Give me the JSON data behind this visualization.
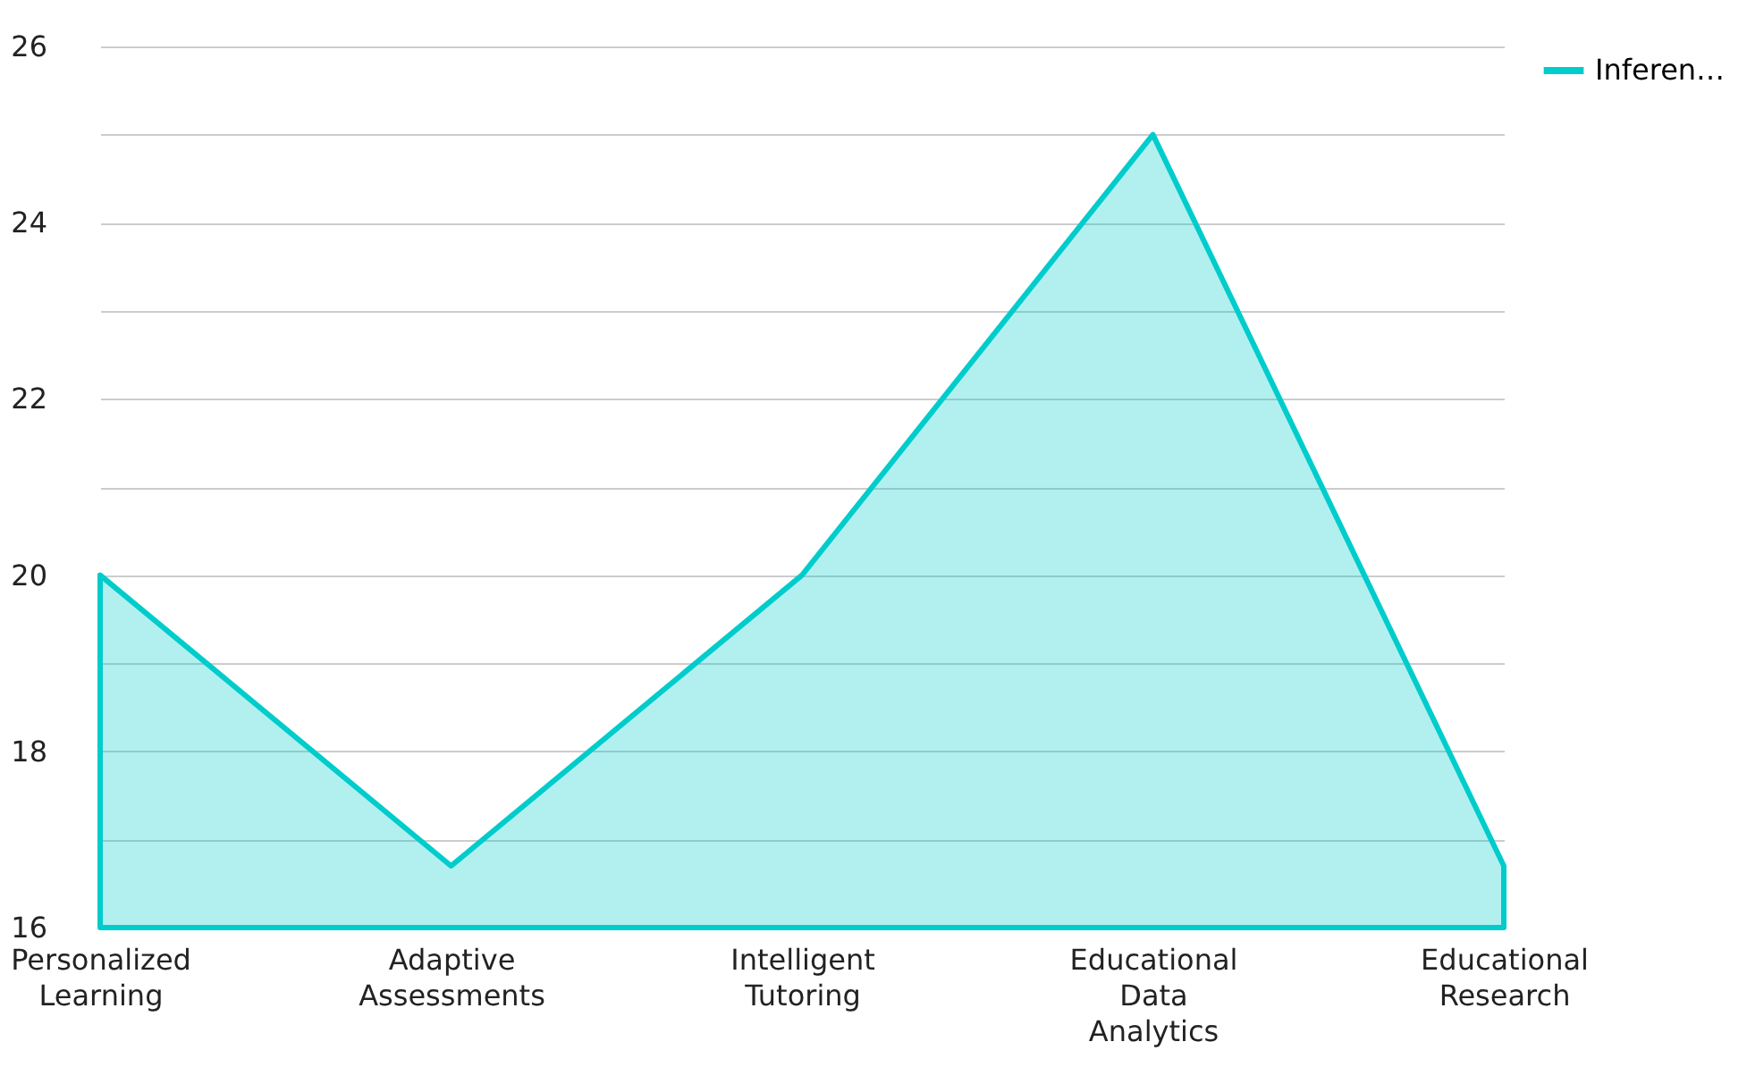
{
  "chart_data": {
    "type": "area",
    "categories": [
      "Personalized Learning",
      "Adaptive Assessments",
      "Intelligent Tutoring",
      "Educational Data Analytics",
      "Educational Research"
    ],
    "series": [
      {
        "name": "Inferen…",
        "color": "#00cccc",
        "values": [
          20,
          16.7,
          20,
          25,
          16.7
        ]
      }
    ],
    "ylim": [
      16,
      26
    ],
    "yticks": [
      16,
      {
        "value": 17,
        "label": null
      },
      18,
      {
        "value": 19,
        "label": null
      },
      20,
      {
        "value": 21,
        "label": null
      },
      22,
      {
        "value": 23,
        "label": null
      },
      24,
      {
        "value": 25,
        "label": null
      },
      26
    ],
    "grid": "y",
    "legend": "top right"
  }
}
